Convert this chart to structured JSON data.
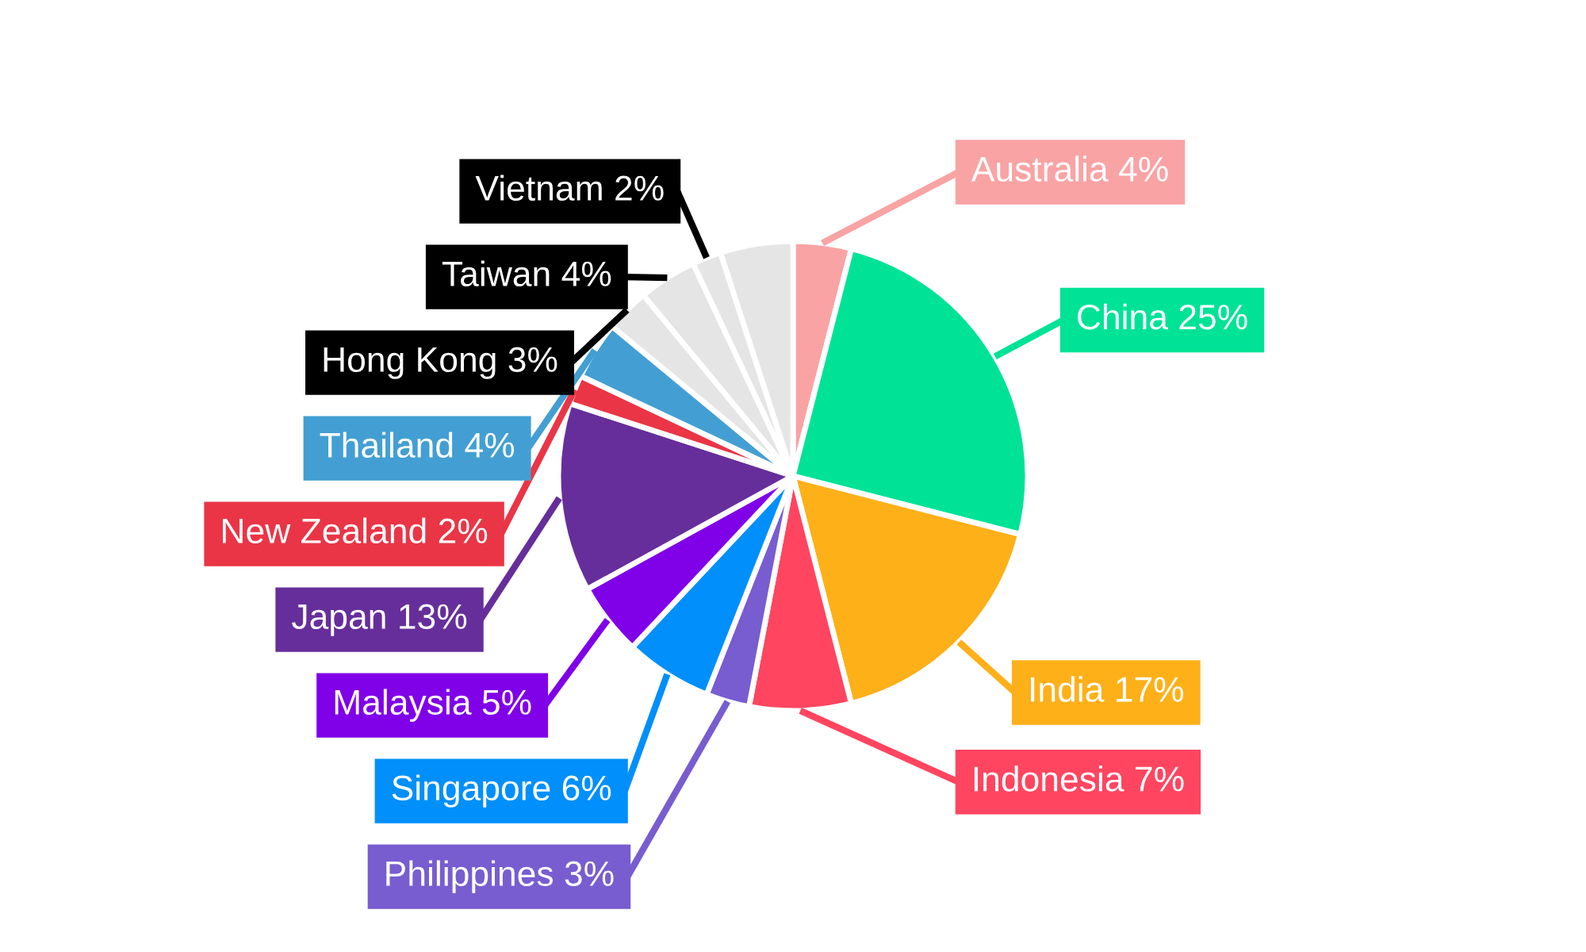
{
  "chart_data": {
    "type": "pie",
    "categories": [
      "Australia 4%",
      "China 25%",
      "India 17%",
      "Indonesia 7%",
      "Philippines 3%",
      "Singapore 6%",
      "Malaysia 5%",
      "Japan 13%",
      "New Zealand 2%",
      "Thailand 4%",
      "Hong Kong 3%",
      "Taiwan 4%",
      "Vietnam 2%",
      null
    ],
    "values": [
      4,
      25,
      17,
      7,
      3,
      6,
      5,
      13,
      2,
      4,
      3,
      4,
      2,
      5
    ],
    "colors": [
      "#f9a3a4",
      "#00e396",
      "#feb019",
      "#ff4560",
      "#775dd0",
      "#008ffb",
      "#8000e8",
      "#662e9b",
      "#ea3546",
      "#439fd3",
      "#e5e5e5",
      "#e5e5e5",
      "#e5e5e5",
      "#e5e5e5"
    ],
    "legend": false
  }
}
